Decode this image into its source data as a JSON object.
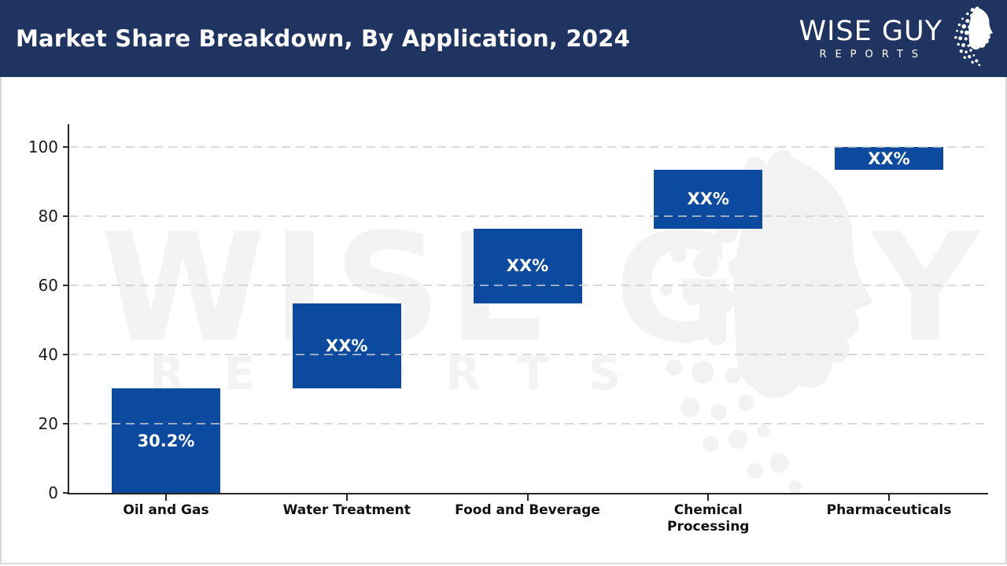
{
  "header": {
    "title": "Market Share Breakdown, By Application, 2024",
    "logo": {
      "line1": "WISE GUY",
      "line2": "REPORTS",
      "icon": "face-profile-dots-icon"
    },
    "bg_color": "#203461"
  },
  "watermark": {
    "line1": "WISE GUY",
    "line2": "REPORTS",
    "icon": "face-profile-dots-icon",
    "color": "#f3f3f3"
  },
  "chart_data": {
    "type": "bar",
    "subtype": "waterfall",
    "title": "Market Share Breakdown, By Application, 2024",
    "xlabel": "",
    "ylabel": "",
    "ylim": [
      0,
      100
    ],
    "yticks": [
      0,
      20,
      40,
      60,
      80,
      100
    ],
    "grid": "horizontal dashed",
    "bar_color": "#0b4a9e",
    "label_color": "#ffffff",
    "categories": [
      "Oil and Gas",
      "Water Treatment",
      "Food and Beverage",
      "Chemical\nProcessing",
      "Pharmaceuticals"
    ],
    "segments": [
      {
        "category": "Oil and Gas",
        "start": 0,
        "end": 30.2,
        "value": 30.2,
        "label": "30.2%"
      },
      {
        "category": "Water Treatment",
        "start": 30.2,
        "end": 54.8,
        "value": 24.6,
        "label": "XX%"
      },
      {
        "category": "Food and Beverage",
        "start": 54.8,
        "end": 76.4,
        "value": 21.6,
        "label": "XX%"
      },
      {
        "category": "Chemical Processing",
        "start": 76.4,
        "end": 93.4,
        "value": 17.0,
        "label": "XX%"
      },
      {
        "category": "Pharmaceuticals",
        "start": 93.4,
        "end": 100,
        "value": 6.6,
        "label": "XX%"
      }
    ]
  }
}
